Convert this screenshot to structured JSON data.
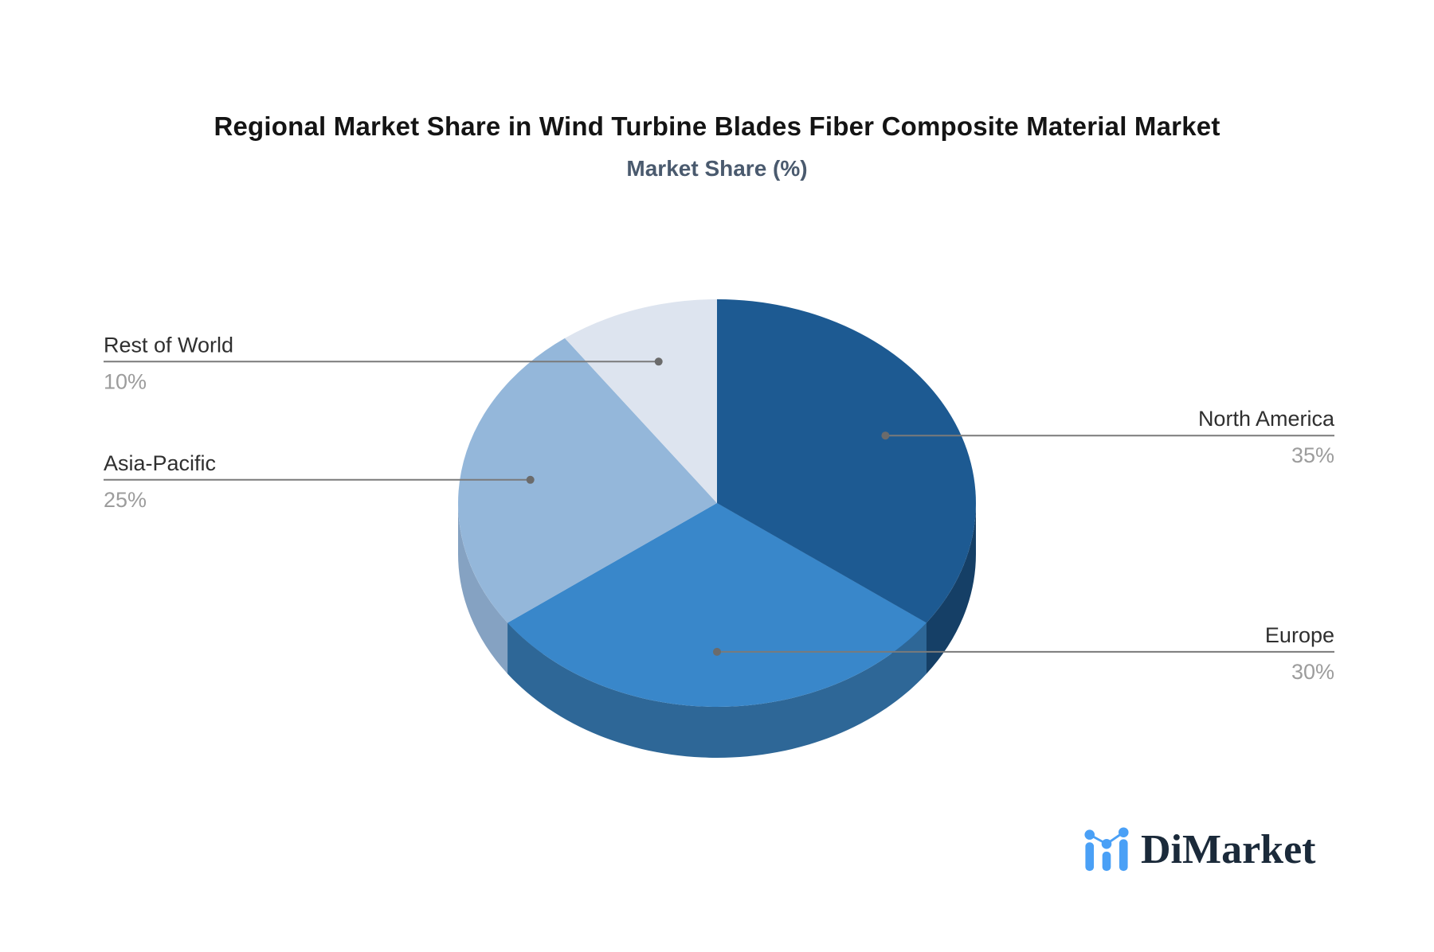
{
  "page": {
    "background": "#ffffff"
  },
  "header": {
    "title": "Regional Market Share in Wind Turbine Blades Fiber Composite Material Market",
    "subtitle": "Market Share (%)"
  },
  "chart_data": {
    "type": "pie",
    "style": "3d",
    "title": "Regional Market Share in Wind Turbine Blades Fiber Composite Material Market",
    "subtitle": "Market Share (%)",
    "unit": "%",
    "direction": "clockwise",
    "start_angle_deg": 0,
    "legend": "none",
    "categories": [
      "North America",
      "Europe",
      "Asia-Pacific",
      "Rest of World"
    ],
    "values": [
      35,
      30,
      25,
      10
    ],
    "slices": [
      {
        "label": "North America",
        "value": 35,
        "pct_label": "35%",
        "color": "#1d5a92",
        "side_color": "#153f66",
        "label_side": "right"
      },
      {
        "label": "Europe",
        "value": 30,
        "pct_label": "30%",
        "color": "#3987ca",
        "side_color": "#2e6797",
        "label_side": "right"
      },
      {
        "label": "Asia-Pacific",
        "value": 25,
        "pct_label": "25%",
        "color": "#94b7da",
        "side_color": "#85a2c2",
        "label_side": "left"
      },
      {
        "label": "Rest of World",
        "value": 10,
        "pct_label": "10%",
        "color": "#dde4ef",
        "side_color": "#b9c3d2",
        "label_side": "left"
      }
    ],
    "label_color": "#2f2f2f",
    "pct_color": "#9c9c9c",
    "leader_line_color": "#7a7a7a",
    "leader_dot_color": "#6b6b6b"
  },
  "brand": {
    "name": "DiMarket",
    "icon": "bar-line-chart-icon",
    "accent": "#4aa0f6",
    "text_color": "#1b2a3a"
  }
}
